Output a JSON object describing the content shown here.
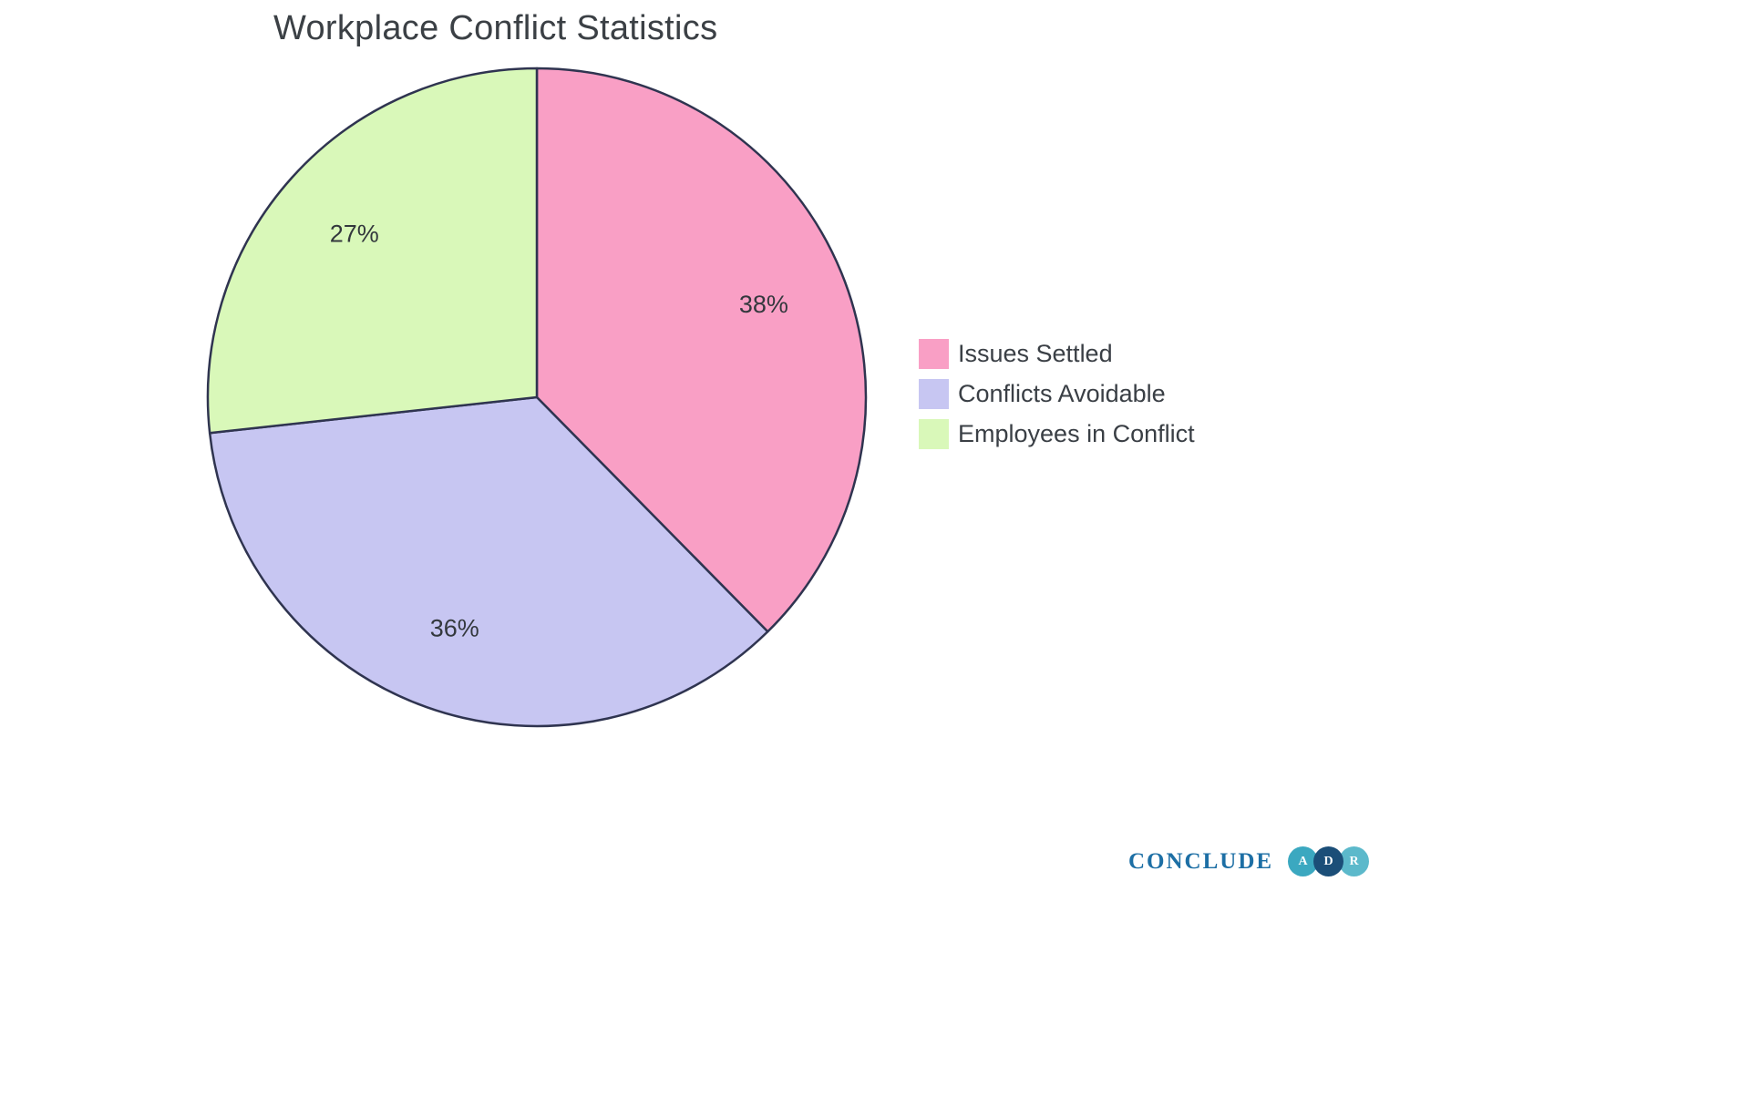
{
  "title": "Workplace Conflict Statistics",
  "chart_data": {
    "type": "pie",
    "title": "Workplace Conflict Statistics",
    "labels": [
      "Issues Settled",
      "Conflicts Avoidable",
      "Employees in Conflict"
    ],
    "values": [
      38,
      36,
      27
    ],
    "percent_labels": [
      "38%",
      "36%",
      "27%"
    ],
    "colors": [
      "#f99fc5",
      "#c7c6f2",
      "#d9f8b9"
    ],
    "outline_color": "#2f3450",
    "start_angle": "top",
    "direction": "clockwise",
    "legend_position": "right",
    "background": "#ffffff"
  },
  "branding": {
    "wordmark": "CONCLUDE",
    "wordmark_color": "#1d6fa5",
    "badges": [
      {
        "letter": "A",
        "color": "#3ba8c0"
      },
      {
        "letter": "D",
        "color": "#1b4e78"
      },
      {
        "letter": "R",
        "color": "#5cb9cb"
      }
    ]
  }
}
